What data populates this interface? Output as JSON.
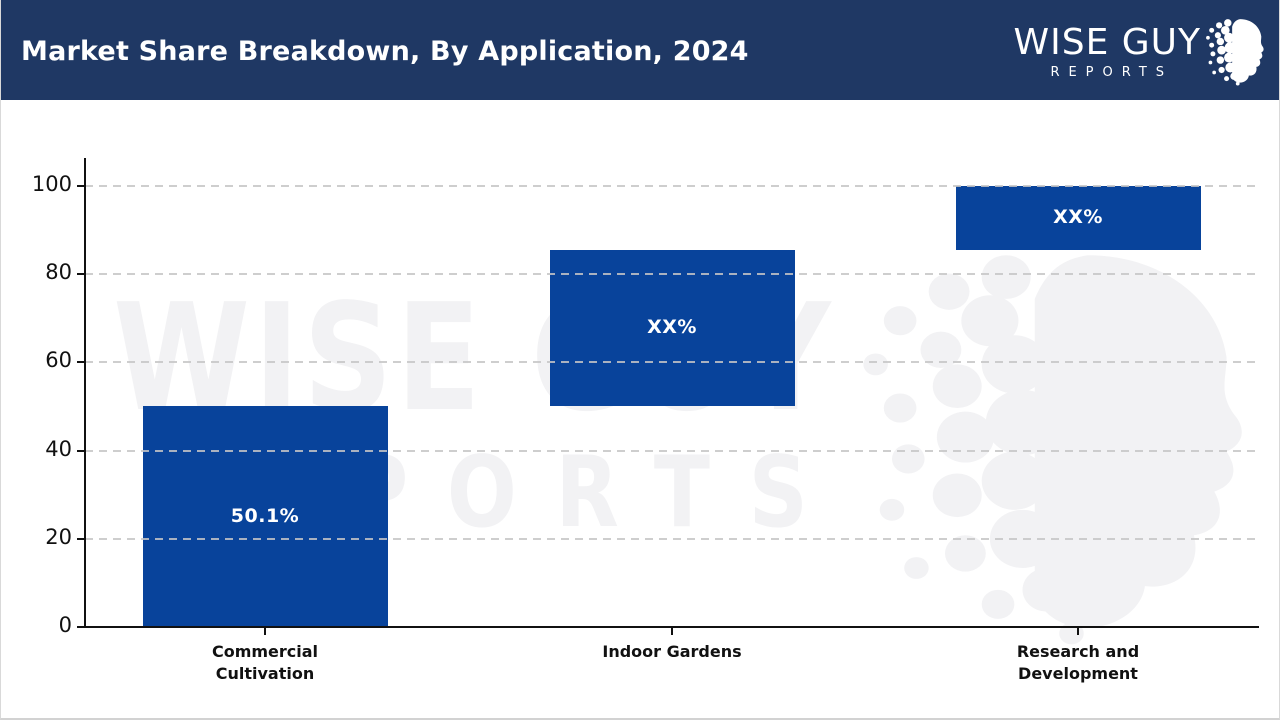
{
  "header": {
    "title": "Market Share Breakdown, By Application, 2024",
    "logo": {
      "name_line": "WISE GUY",
      "reports_line": "REPORTS"
    }
  },
  "watermark": {
    "line1": "WISE GUY",
    "line2": "REPORTS"
  },
  "colors": {
    "header_bg": "#1F3864",
    "bar_blue": "#08439B",
    "bar_label": "#ffffff",
    "axis": "#111111",
    "gridline": "#c6c6c6",
    "watermark": "#f2f2f4"
  },
  "chart_data": {
    "type": "bar",
    "subtype": "floating-segment-percentage",
    "title": "Market Share Breakdown, By Application, 2024",
    "categories": [
      "Commercial\nCultivation",
      "Indoor Gardens",
      "Research and\nDevelopment"
    ],
    "segments": [
      {
        "category": "Commercial Cultivation",
        "label": "50.1%",
        "start": 0,
        "end": 50.1
      },
      {
        "category": "Indoor Gardens",
        "label": "XX%",
        "start": 50.1,
        "end": 85.5
      },
      {
        "category": "Research and Development",
        "label": "XX%",
        "start": 85.5,
        "end": 100
      }
    ],
    "yticks": [
      0,
      20,
      40,
      60,
      80,
      100
    ],
    "ylim": [
      0,
      100
    ],
    "grid": "dashed horizontal, drawn over bars",
    "legend": "none"
  }
}
